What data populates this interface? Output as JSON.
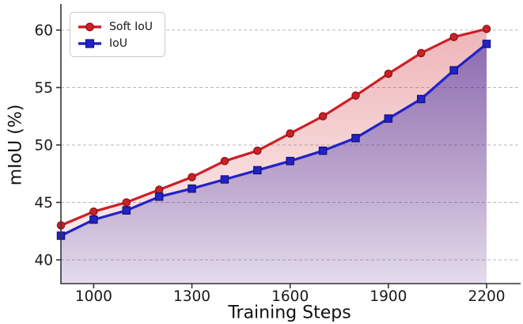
{
  "chart_data": {
    "type": "line",
    "title": "",
    "xlabel": "Training Steps",
    "ylabel": "mIoU (%)",
    "x": [
      900,
      1000,
      1100,
      1200,
      1300,
      1400,
      1500,
      1600,
      1700,
      1800,
      1900,
      2000,
      2100,
      2200
    ],
    "series": [
      {
        "name": "Soft IoU",
        "marker": "circle",
        "color": "#cc2027",
        "edge_color": "#8c1114",
        "values": [
          43.0,
          44.2,
          45.0,
          46.1,
          47.2,
          48.6,
          49.5,
          51.0,
          52.5,
          54.3,
          56.2,
          58.0,
          59.4,
          60.1
        ]
      },
      {
        "name": "IoU",
        "marker": "square",
        "color": "#2222c8",
        "edge_color": "#14147e",
        "values": [
          42.1,
          43.5,
          44.3,
          45.5,
          46.2,
          47.0,
          47.8,
          48.6,
          49.5,
          50.6,
          52.3,
          54.0,
          56.5,
          58.8
        ]
      }
    ],
    "x_ticks": [
      1000,
      1300,
      1600,
      1900,
      2200
    ],
    "y_ticks": [
      40,
      45,
      50,
      55,
      60
    ],
    "xlim": [
      900,
      2300
    ],
    "ylim": [
      38,
      62.3
    ],
    "grid": {
      "horizontal": true,
      "style": "dashed",
      "color": "#b8b8b8"
    },
    "legend": {
      "position": "upper-left",
      "entries": [
        "Soft IoU",
        "IoU"
      ]
    },
    "area_fill": "gradient fill under each series fading toward bottom",
    "spine_color": "#333333",
    "tick_label_color": "#1a1a1a"
  }
}
